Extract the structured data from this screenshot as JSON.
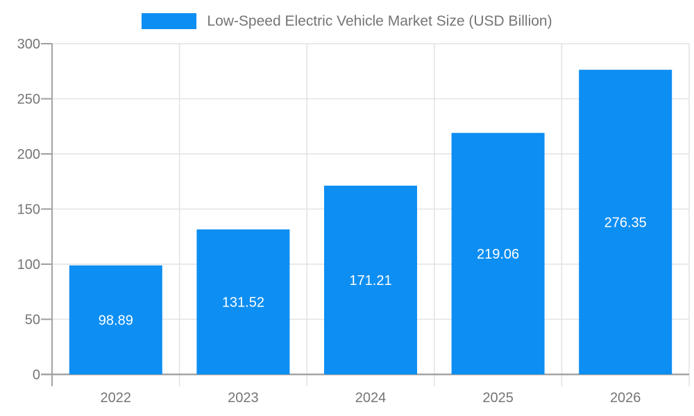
{
  "colors": {
    "bar": "#0D8EF2",
    "grid": "#E2E2E2",
    "axis": "#A3A3A3",
    "tick": "#9E9E9E",
    "text": "#757575",
    "value_label": "#FFFFFF",
    "background": "#FFFFFF"
  },
  "legend": {
    "label": "Low-Speed Electric Vehicle Market Size (USD Billion)"
  },
  "chart_data": {
    "type": "bar",
    "title": "Low-Speed Electric Vehicle Market Size (USD Billion)",
    "series_name": "Low-Speed Electric Vehicle Market Size (USD Billion)",
    "categories": [
      "2022",
      "2023",
      "2024",
      "2025",
      "2026"
    ],
    "values": [
      98.89,
      131.52,
      171.21,
      219.06,
      276.35
    ],
    "value_labels": [
      "98.89",
      "131.52",
      "171.21",
      "219.06",
      "276.35"
    ],
    "xlabel": "",
    "ylabel": "",
    "ylim": [
      0,
      300
    ],
    "yticks": [
      0,
      50,
      100,
      150,
      200,
      250,
      300
    ],
    "grid": true,
    "legend_position": "top"
  }
}
